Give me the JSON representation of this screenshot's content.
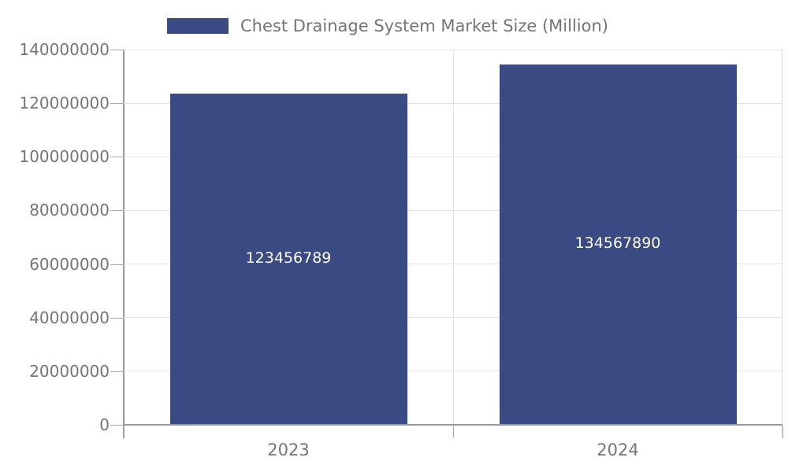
{
  "chart_data": {
    "type": "bar",
    "title": "Chest Drainage System Market Size (Million)",
    "categories": [
      "2023",
      "2024"
    ],
    "values": [
      123456789,
      134567890
    ],
    "bar_labels": [
      "123456789",
      "134567890"
    ],
    "series": [
      {
        "name": "Chest Drainage System Market Size (Million)",
        "values": [
          123456789,
          134567890
        ]
      }
    ],
    "xlabel": "",
    "ylabel": "",
    "ylim": [
      0,
      140000000
    ],
    "yticks": [
      0,
      20000000,
      40000000,
      60000000,
      80000000,
      100000000,
      120000000,
      140000000
    ],
    "grid": true,
    "legend_position": "top-center"
  },
  "colors": {
    "bar": "#394B82",
    "grid": "#e3e3e3",
    "axis": "#999999",
    "tick": "#aaaaaa",
    "spine_right": "#d7d7d7",
    "text": "#757575",
    "bar_label": "#ffffff",
    "background": "#ffffff"
  }
}
